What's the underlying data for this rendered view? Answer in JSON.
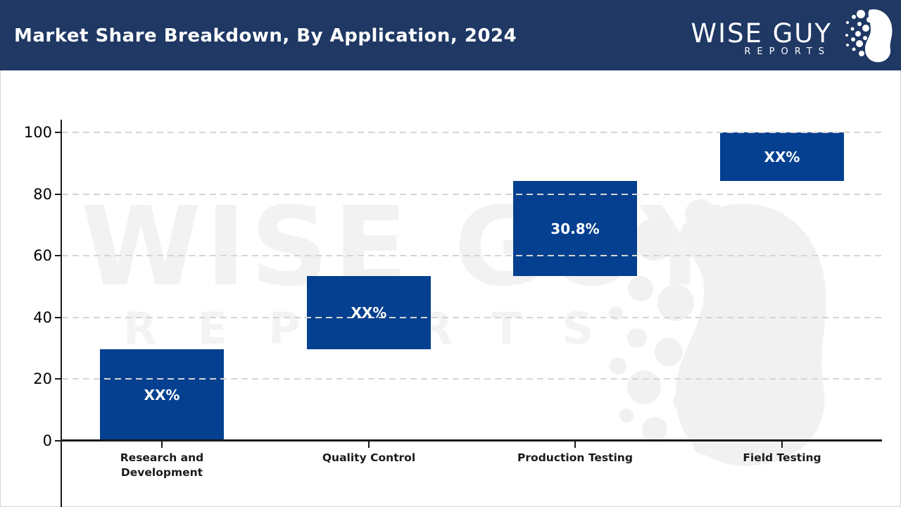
{
  "header": {
    "title": "Market Share Breakdown, By Application, 2024",
    "logo": {
      "line1": "WISE GUY",
      "line2": "REPORTS"
    },
    "bg_color": "#1f3864"
  },
  "watermark": {
    "line1": "WISE GUY",
    "line2": "REPORTS"
  },
  "chart_data": {
    "type": "bar",
    "subtype": "waterfall",
    "title": "Market Share Breakdown, By Application, 2024",
    "categories": [
      "Research and Development",
      "Quality Control",
      "Production Testing",
      "Field Testing"
    ],
    "segments": [
      {
        "category": "Research and Development",
        "start": 0,
        "end": 29.8,
        "label": "XX%"
      },
      {
        "category": "Quality Control",
        "start": 29.8,
        "end": 53.4,
        "label": "XX%"
      },
      {
        "category": "Production Testing",
        "start": 53.4,
        "end": 84.2,
        "label": "30.8%"
      },
      {
        "category": "Field Testing",
        "start": 84.2,
        "end": 100.0,
        "label": "XX%"
      }
    ],
    "ylim": [
      0,
      100
    ],
    "yticks": [
      0,
      20,
      40,
      60,
      80,
      100
    ],
    "grid": "horizontal-dashed",
    "bar_color": "#04408f",
    "label_color": "#ffffff",
    "legend": "none"
  }
}
